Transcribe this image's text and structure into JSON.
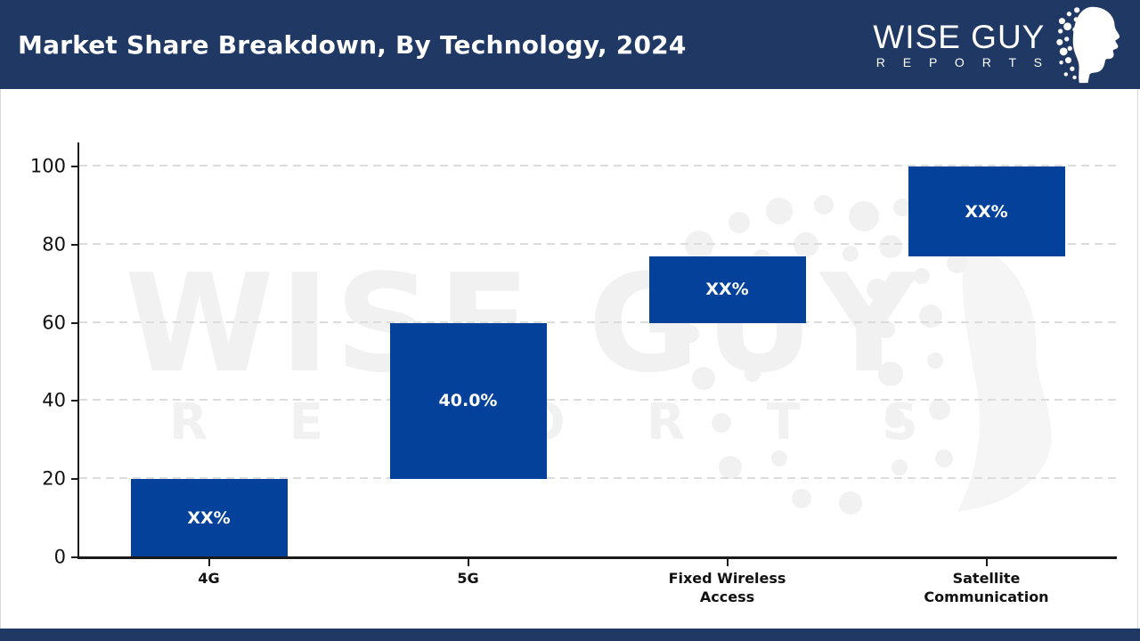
{
  "header": {
    "title": "Market Share Breakdown, By Technology, 2024",
    "bg_color": "#203864",
    "logo": {
      "line1": "WISE GUY",
      "line2": "R E P O R T S"
    }
  },
  "watermark": {
    "line1": "WISE GUY",
    "line2": "R E P O R T S"
  },
  "footer": {
    "bg_color": "#203864"
  },
  "chart_data": {
    "type": "bar",
    "subtype": "waterfall",
    "title": "Market Share Breakdown, By Technology, 2024",
    "categories": [
      "4G",
      "5G",
      "Fixed Wireless\nAccess",
      "Satellite\nCommunication"
    ],
    "segments": [
      {
        "category": "4G",
        "start": 0,
        "end": 20,
        "label": "XX%"
      },
      {
        "category": "5G",
        "start": 20,
        "end": 60,
        "label": "40.0%"
      },
      {
        "category": "Fixed Wireless\nAccess",
        "start": 60,
        "end": 77,
        "label": "XX%"
      },
      {
        "category": "Satellite\nCommunication",
        "start": 77,
        "end": 100,
        "label": "XX%"
      }
    ],
    "ylim": [
      0,
      100
    ],
    "yticks": [
      0,
      20,
      40,
      60,
      80,
      100
    ],
    "bar_color": "#04419A",
    "bar_label_color": "#ffffff",
    "grid": "horizontal-dashed",
    "legend": "none"
  }
}
